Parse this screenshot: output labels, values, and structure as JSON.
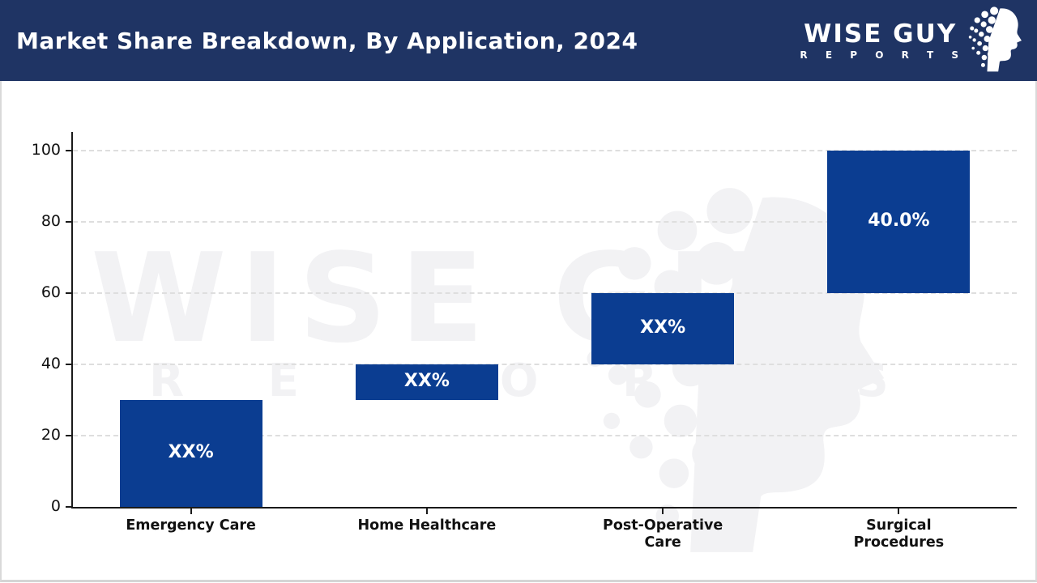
{
  "header": {
    "title": "Market Share Breakdown, By Application, 2024",
    "bg_color": "#1f3464",
    "logo": {
      "line1": "WISE GUY",
      "line2": "R E P O R T S"
    }
  },
  "watermark": {
    "line1": "WISE GUY",
    "line2": "R E P O R T S"
  },
  "chart_data": {
    "type": "bar",
    "subtype": "waterfall",
    "title": "Market Share Breakdown, By Application, 2024",
    "categories": [
      "Emergency Care",
      "Home Healthcare",
      "Post-Operative Care",
      "Surgical Procedures"
    ],
    "category_label_lines": [
      [
        "Emergency Care"
      ],
      [
        "Home Healthcare"
      ],
      [
        "Post-Operative",
        "Care"
      ],
      [
        "Surgical",
        "Procedures"
      ]
    ],
    "values": [
      30,
      10,
      20,
      40
    ],
    "bar_ranges": [
      [
        0,
        30
      ],
      [
        30,
        40
      ],
      [
        40,
        60
      ],
      [
        60,
        100
      ]
    ],
    "bar_labels": [
      "XX%",
      "XX%",
      "XX%",
      "40.0%"
    ],
    "yticks": [
      0,
      20,
      40,
      60,
      80,
      100
    ],
    "ylim": [
      0,
      100
    ],
    "xlabel": "",
    "ylabel": "",
    "bar_color": "#0b3d91",
    "grid": "horizontal-dashed",
    "gridline_color": "#dedede",
    "legend": "none"
  }
}
